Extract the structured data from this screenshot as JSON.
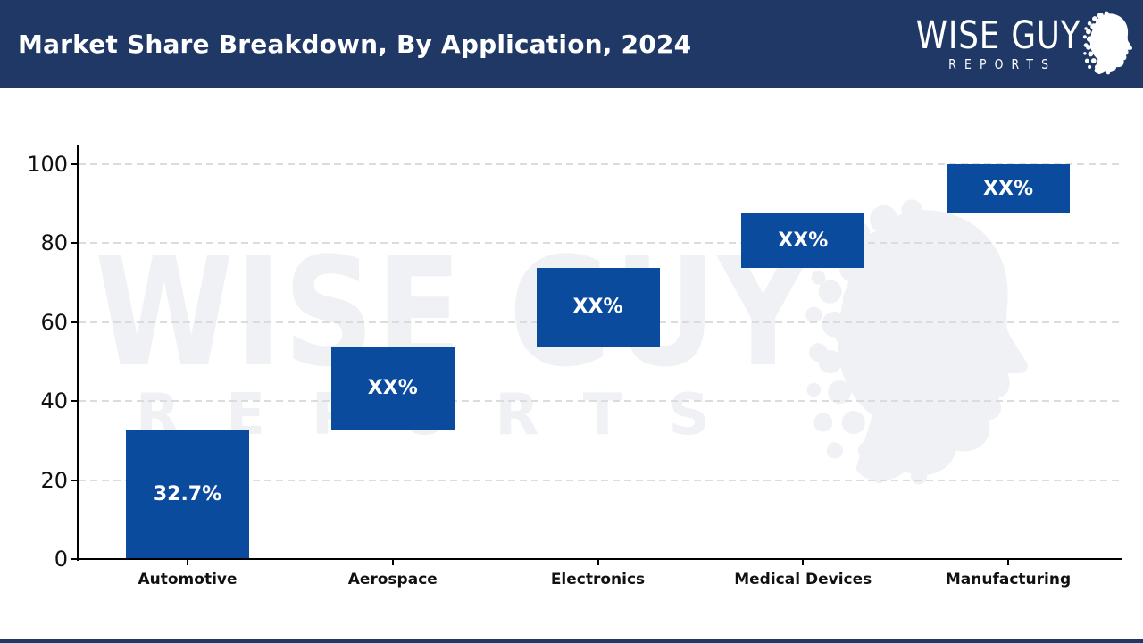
{
  "header": {
    "title": "Market Share Breakdown, By Application, 2024",
    "logo": {
      "line1": "WISE GUY",
      "line2": "REPORTS"
    }
  },
  "watermark": {
    "line1": "WISE GUY",
    "line2": "REPORTS"
  },
  "colors": {
    "header_bg": "#1f3866",
    "bar": "#0a4b9d",
    "bar_label": "#ffffff",
    "grid": "#dcdcdc",
    "axis": "#000000",
    "watermark": "#f0f1f4"
  },
  "chart_data": {
    "type": "bar",
    "subtype": "waterfall",
    "title": "Market Share Breakdown, By Application, 2024",
    "categories": [
      "Automotive",
      "Aerospace",
      "Electronics",
      "Medical Devices",
      "Manufacturing"
    ],
    "segments": [
      {
        "category": "Automotive",
        "label": "32.7%",
        "start": 0,
        "end": 32.7
      },
      {
        "category": "Aerospace",
        "label": "XX%",
        "start": 32.7,
        "end": 53.9
      },
      {
        "category": "Electronics",
        "label": "XX%",
        "start": 53.9,
        "end": 73.8
      },
      {
        "category": "Medical Devices",
        "label": "XX%",
        "start": 73.8,
        "end": 87.7
      },
      {
        "category": "Manufacturing",
        "label": "XX%",
        "start": 87.7,
        "end": 100
      }
    ],
    "yticks": [
      0,
      20,
      40,
      60,
      80,
      100
    ],
    "ylim": [
      0,
      105
    ],
    "xlabel": "",
    "ylabel": "",
    "grid": "horizontal-dashed",
    "legend": "none"
  }
}
